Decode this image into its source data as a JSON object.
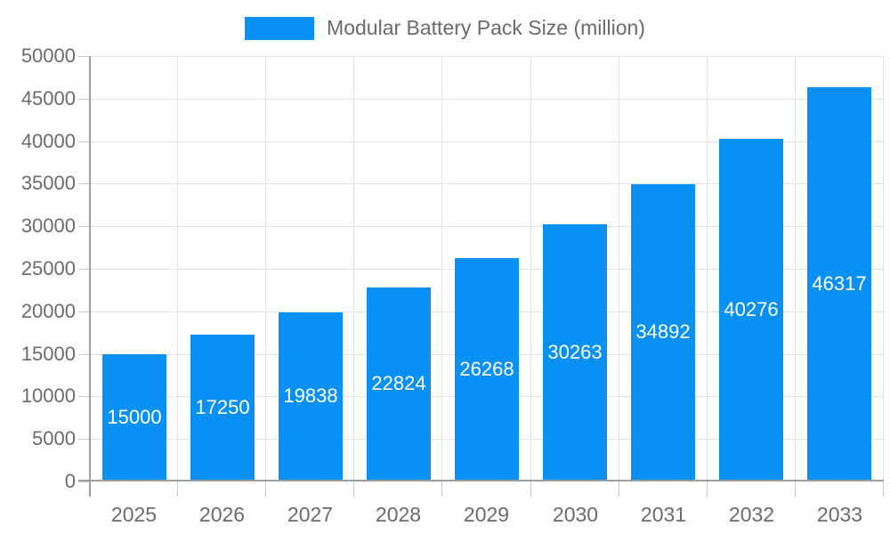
{
  "legend": {
    "label": "Modular Battery Pack Size (million)"
  },
  "chart_data": {
    "type": "bar",
    "title": "Modular Battery Pack Size (million)",
    "categories": [
      "2025",
      "2026",
      "2027",
      "2028",
      "2029",
      "2030",
      "2031",
      "2032",
      "2033"
    ],
    "values": [
      15000,
      17250,
      19838,
      22824,
      26268,
      30263,
      34892,
      40276,
      46317
    ],
    "xlabel": "",
    "ylabel": "",
    "ylim": [
      0,
      50000
    ],
    "ytick_step": 5000,
    "ytick_labels": [
      "0",
      "5000",
      "10000",
      "15000",
      "20000",
      "25000",
      "30000",
      "35000",
      "40000",
      "45000",
      "50000"
    ],
    "grid": true,
    "legend_position": "top-center",
    "value_labels": "inside-center",
    "colors": {
      "bar": "#0890f5",
      "value_label": "#ffffff",
      "axis": "#9e9e9e",
      "grid": "#e3e3e3",
      "tick": "#c9c9c9",
      "text": "#6b6b6b"
    }
  }
}
